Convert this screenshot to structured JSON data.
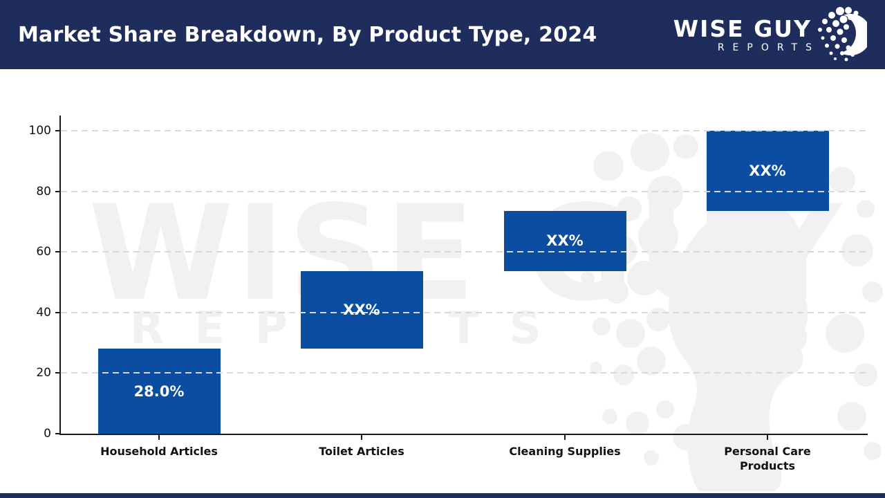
{
  "header": {
    "title": "Market Share Breakdown, By Product Type, 2024",
    "bg_color": "#1e2d5c",
    "logo": {
      "name": "WISE GUY",
      "sub": "REPORTS"
    }
  },
  "watermark": {
    "line1": "WISE GUY",
    "line2": "REPORTS"
  },
  "chart_data": {
    "type": "bar",
    "subtype": "waterfall",
    "title": "Market Share Breakdown, By Product Type, 2024",
    "categories": [
      "Household Articles",
      "Toilet Articles",
      "Cleaning Supplies",
      "Personal Care Products"
    ],
    "segments": [
      {
        "category": "Household Articles",
        "start": 0,
        "end": 28,
        "value_label": "28.0%"
      },
      {
        "category": "Toilet Articles",
        "start": 28,
        "end": 53.6,
        "value_label": "XX%"
      },
      {
        "category": "Cleaning Supplies",
        "start": 53.6,
        "end": 73.6,
        "value_label": "XX%"
      },
      {
        "category": "Personal Care Products",
        "start": 73.6,
        "end": 100,
        "value_label": "XX%"
      }
    ],
    "yticks": [
      0,
      20,
      40,
      60,
      80,
      100
    ],
    "ylim": [
      0,
      104
    ],
    "xlabel": "",
    "ylabel": "",
    "legend": "none",
    "grid": "horizontal-dashed",
    "bar_color": "#0b4da0",
    "grid_color": "#d9d9d9",
    "axis_color": "#1a1a1a",
    "background": "#ffffff"
  },
  "footer": {
    "bg_color": "#1e2d5c"
  }
}
